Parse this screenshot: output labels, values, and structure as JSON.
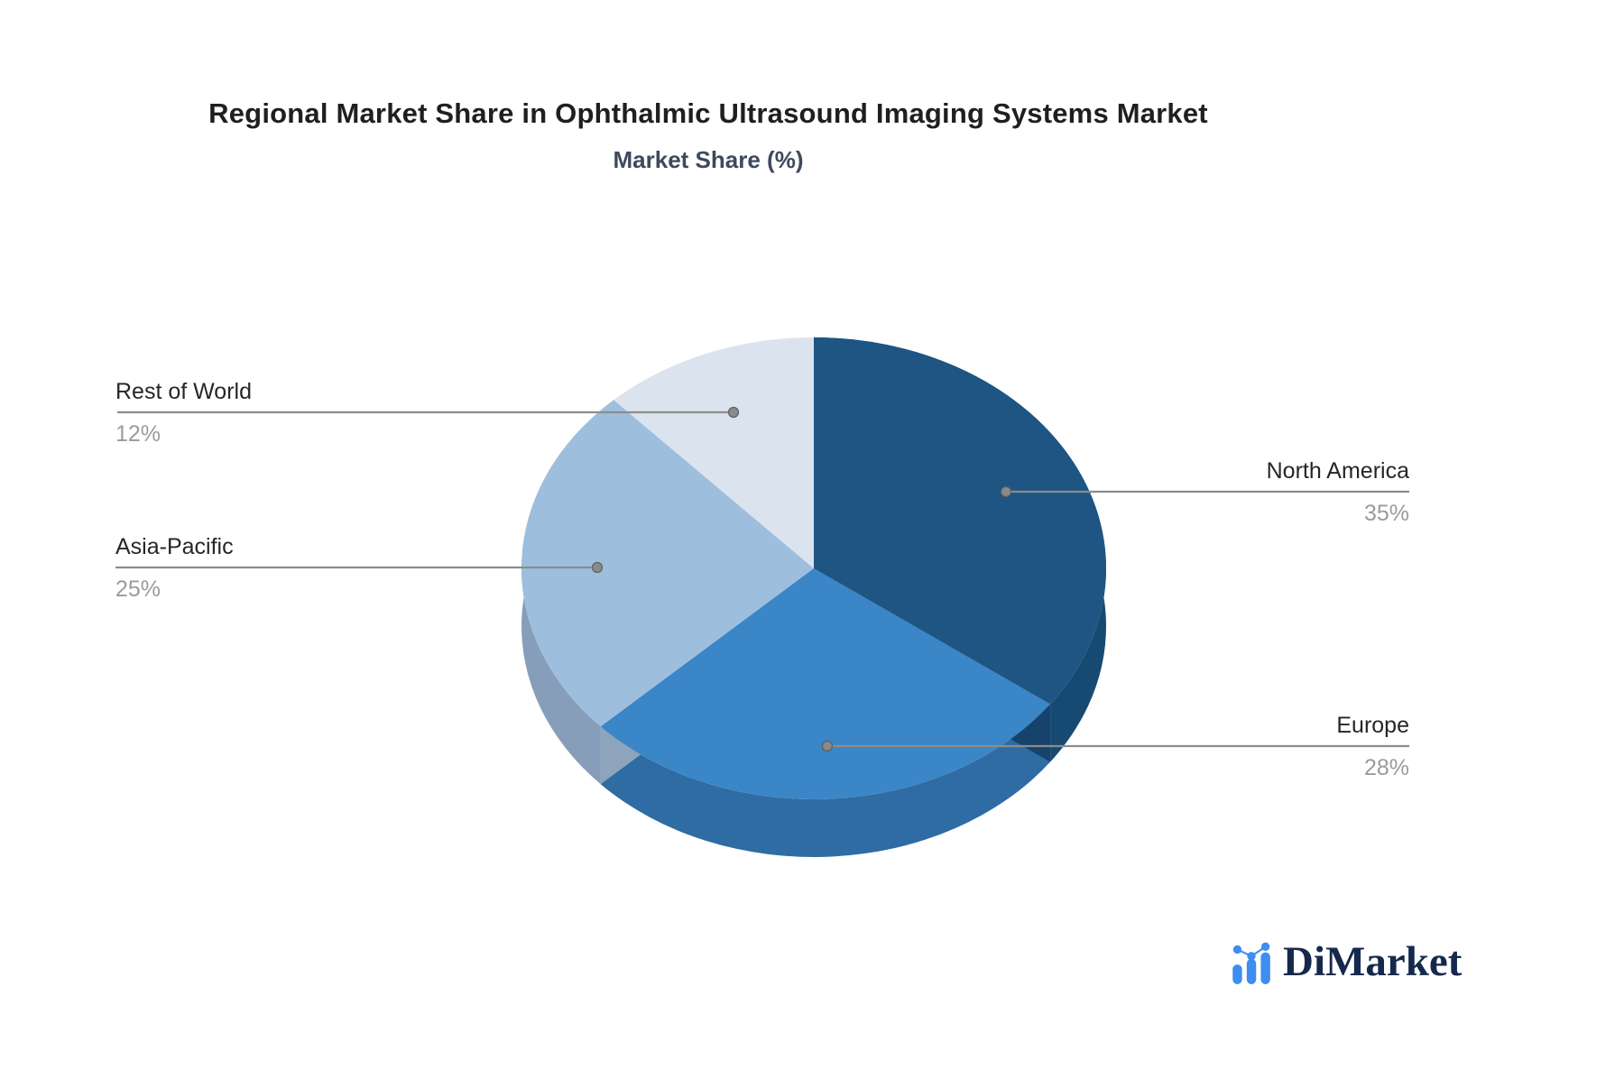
{
  "header": {
    "title": "Regional Market Share in Ophthalmic Ultrasound Imaging Systems Market",
    "subtitle": "Market Share (%)"
  },
  "chart_data": {
    "type": "pie",
    "title": "Regional Market Share in Ophthalmic Ultrasound Imaging Systems Market",
    "subtitle": "Market Share (%)",
    "unit": "%",
    "effect": "3d",
    "direction": "clockwise",
    "start_angle_deg": 0,
    "legend": "none — callout labels with leader lines",
    "categories": [
      "North America",
      "Europe",
      "Asia-Pacific",
      "Rest of World"
    ],
    "values": [
      35,
      28,
      25,
      12
    ],
    "slices": [
      {
        "label": "North America",
        "value": 35,
        "pct_label": "35%",
        "color": "#1E5583",
        "side_color": "#174A73",
        "wall_color": "#16426B"
      },
      {
        "label": "Europe",
        "value": 28,
        "pct_label": "28%",
        "color": "#3A86C7",
        "side_color": "#2E6CA3",
        "wall_color": "#2E6CA3"
      },
      {
        "label": "Asia-Pacific",
        "value": 25,
        "pct_label": "25%",
        "color": "#9EBEDE",
        "side_color": "#869EB9",
        "wall_color": "#8EA4BC"
      },
      {
        "label": "Rest of World",
        "value": 12,
        "pct_label": "12%",
        "color": "#DBE3EF",
        "side_color": "#B9C6D9",
        "wall_color": "#B9C6D9"
      }
    ]
  },
  "colors": {
    "title": "#1f1f1f",
    "subtitle": "#3d4a5c",
    "label": "#262626",
    "value": "#9b9b9b",
    "leader_line": "#8c8c8c",
    "leader_dot": "#8a8a8a",
    "brand_text": "#16294d",
    "brand_bars": "#3E8DF0",
    "background": "#ffffff"
  },
  "brand": {
    "name": "DiMarket"
  }
}
